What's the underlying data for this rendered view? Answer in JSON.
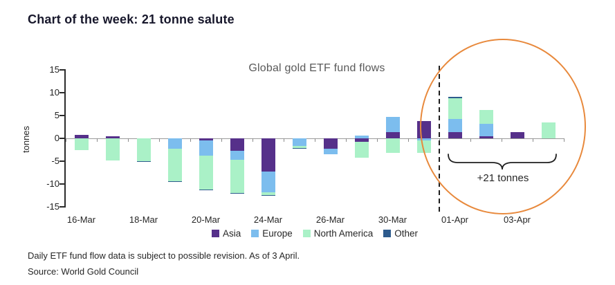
{
  "page": {
    "title": "Chart of the week: 21 tonne salute",
    "footnote": "Daily ETF fund flow data is subject to possible revision. As of 3 April.",
    "source": "Source: World Gold Council"
  },
  "chart_data": {
    "type": "bar",
    "stacked": true,
    "title": "Global gold ETF fund flows",
    "ylabel": "tonnes",
    "ylim": [
      -15,
      15
    ],
    "yticks": [
      15,
      10,
      5,
      0,
      -5,
      -10,
      -15
    ],
    "grid": false,
    "legend_position": "bottom",
    "categories": [
      "16-Mar",
      "",
      "18-Mar",
      "",
      "20-Mar",
      "",
      "24-Mar",
      "",
      "26-Mar",
      "",
      "30-Mar",
      "",
      "01-Apr",
      "",
      "03-Apr",
      ""
    ],
    "series": [
      {
        "name": "Asia",
        "color": "#56308a",
        "values": [
          0.8,
          0.4,
          0,
          0,
          -0.4,
          -2.7,
          -7.2,
          0,
          -2.3,
          -0.8,
          1.4,
          3.8,
          1.3,
          0.4,
          1.4,
          0
        ]
      },
      {
        "name": "Europe",
        "color": "#7cbdee",
        "values": [
          0,
          0,
          0,
          -2.3,
          -3.4,
          -2.0,
          -4.6,
          -1.7,
          -1.1,
          0.6,
          3.3,
          -0.4,
          2.9,
          2.8,
          0,
          0
        ]
      },
      {
        "name": "North America",
        "color": "#aaf1c7",
        "values": [
          -2.6,
          -4.8,
          -5.0,
          -7.0,
          -7.3,
          -7.2,
          -0.5,
          -0.4,
          0,
          -3.4,
          -3.1,
          -2.7,
          4.5,
          3.0,
          0,
          3.5
        ]
      },
      {
        "name": "Other",
        "color": "#2d5b8d",
        "values": [
          0,
          0,
          -0.2,
          -0.2,
          -0.2,
          -0.2,
          -0.2,
          -0.2,
          0,
          0,
          0,
          0,
          0.4,
          0,
          0,
          0
        ]
      }
    ],
    "annotations": {
      "brace_label": "+21 tonnes",
      "brace_span_category_indexes": [
        12,
        15
      ],
      "dashed_line_before_category_index": 12,
      "circle_color": "#e8893c"
    }
  }
}
